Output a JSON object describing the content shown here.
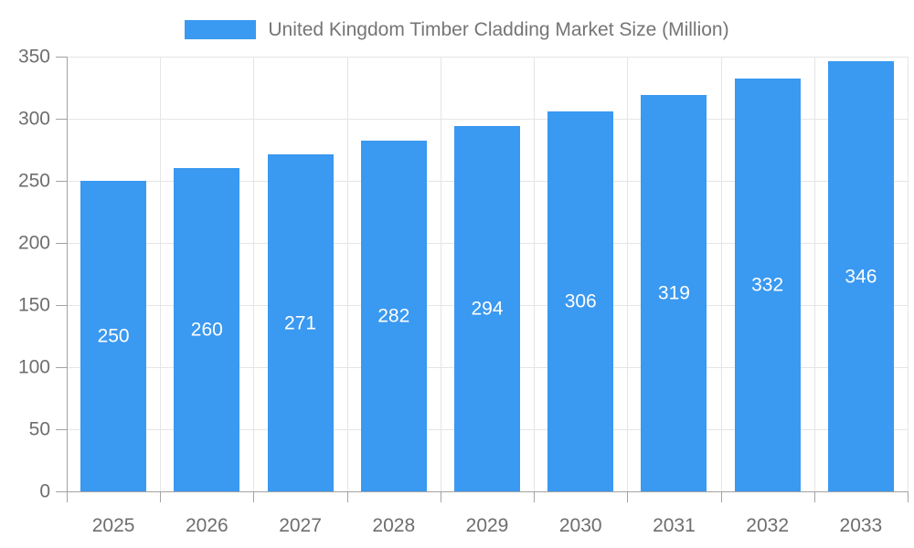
{
  "chart_data": {
    "type": "bar",
    "title": "United Kingdom Timber Cladding Market Size (Million)",
    "categories": [
      "2025",
      "2026",
      "2027",
      "2028",
      "2029",
      "2030",
      "2031",
      "2032",
      "2033"
    ],
    "values": [
      250,
      260,
      271,
      282,
      294,
      306,
      319,
      332,
      346
    ],
    "series": [
      {
        "name": "United Kingdom Timber Cladding Market Size (Million)",
        "values": [
          250,
          260,
          271,
          282,
          294,
          306,
          319,
          332,
          346
        ]
      }
    ],
    "xlabel": "",
    "ylabel": "",
    "ylim": [
      0,
      350
    ],
    "ytick_step": 50,
    "yticks": [
      0,
      50,
      100,
      150,
      200,
      250,
      300,
      350
    ],
    "grid": "on",
    "legend_position": "top-center",
    "value_labels": "inside-center-white",
    "colors": {
      "bar": "#3A99F0",
      "value_label": "#FFFFFF",
      "legend_text": "#757575",
      "axis_label": "#6E6E6E",
      "gridline": "#E5E5E5",
      "axis_line": "#A3A3A3"
    }
  }
}
